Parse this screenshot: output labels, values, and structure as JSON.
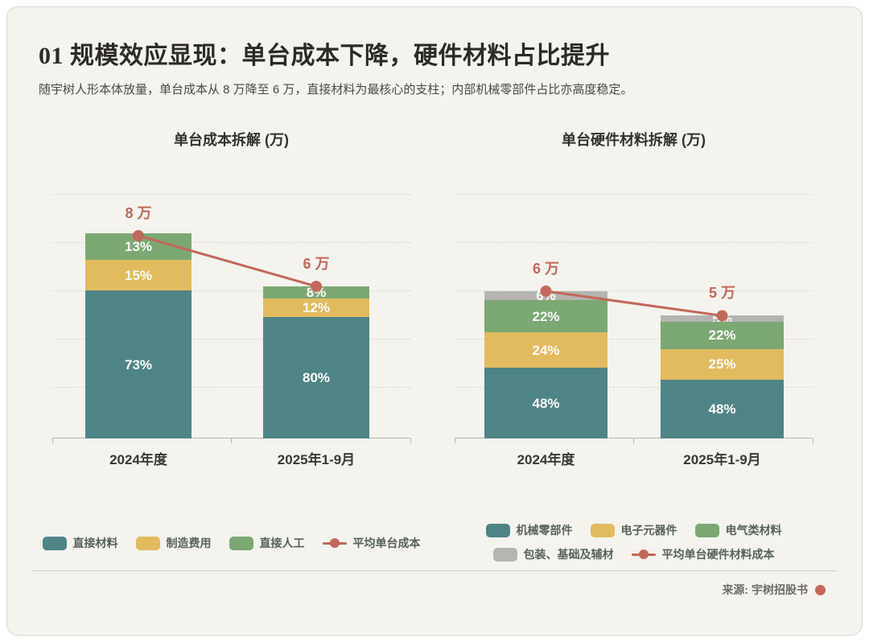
{
  "header": {
    "title": "01 规模效应显现：单台成本下降，硬件材料占比提升",
    "subtitle": "随宇树人形本体放量，单台成本从 8 万降至 6 万，直接材料为最核心的支柱；内部机械零部件占比亦高度稳定。"
  },
  "footer": {
    "source": "来源: 宇树招股书"
  },
  "colors": {
    "teal": "#4f8486",
    "yellow": "#e2bb5f",
    "green": "#7ba873",
    "gray": "#b5b4b0",
    "accent_red": "#c2685a",
    "card_bg": "#f4f3ee"
  },
  "chart_data": [
    {
      "type": "bar",
      "stacked": true,
      "title": "单台成本拆解 (万)",
      "unit": "万",
      "categories": [
        "2024年度",
        "2025年1-9月"
      ],
      "totals": [
        8,
        6
      ],
      "total_labels": [
        "8 万",
        "6 万"
      ],
      "ylim": [
        0,
        9.84
      ],
      "grid": "dashed-horizontal",
      "legend_position": "bottom",
      "series": [
        {
          "name": "直接材料",
          "color": "#4f8486",
          "values_pct": [
            73,
            80
          ]
        },
        {
          "name": "制造费用",
          "color": "#e2bb5f",
          "values_pct": [
            15,
            12
          ]
        },
        {
          "name": "直接人工",
          "color": "#7ba873",
          "values_pct": [
            13,
            8
          ]
        }
      ],
      "line": {
        "name": "平均单台成本",
        "color": "#c2685a",
        "values": [
          8,
          6
        ]
      },
      "legend_rows": [
        [
          "直接材料",
          "制造费用",
          "直接人工",
          "@line"
        ]
      ]
    },
    {
      "type": "bar",
      "stacked": true,
      "title": "单台硬件材料拆解 (万)",
      "unit": "万",
      "categories": [
        "2024年度",
        "2025年1-9月"
      ],
      "totals": [
        6,
        5
      ],
      "total_labels": [
        "6 万",
        "5 万"
      ],
      "ylim": [
        0,
        10.16
      ],
      "grid": "dashed-horizontal",
      "legend_position": "bottom",
      "series": [
        {
          "name": "机械零部件",
          "color": "#4f8486",
          "values_pct": [
            48,
            48
          ]
        },
        {
          "name": "电子元器件",
          "color": "#e2bb5f",
          "values_pct": [
            24,
            25
          ]
        },
        {
          "name": "电气类材料",
          "color": "#7ba873",
          "values_pct": [
            22,
            22
          ]
        },
        {
          "name": "包装、基础及辅材",
          "color": "#b5b4b0",
          "values_pct": [
            6,
            5
          ]
        }
      ],
      "line": {
        "name": "平均单台硬件材料成本",
        "color": "#c2685a",
        "values": [
          6,
          5
        ]
      },
      "legend_rows": [
        [
          "机械零部件",
          "电子元器件",
          "电气类材料"
        ],
        [
          "包装、基础及辅材",
          "@line"
        ]
      ]
    }
  ]
}
